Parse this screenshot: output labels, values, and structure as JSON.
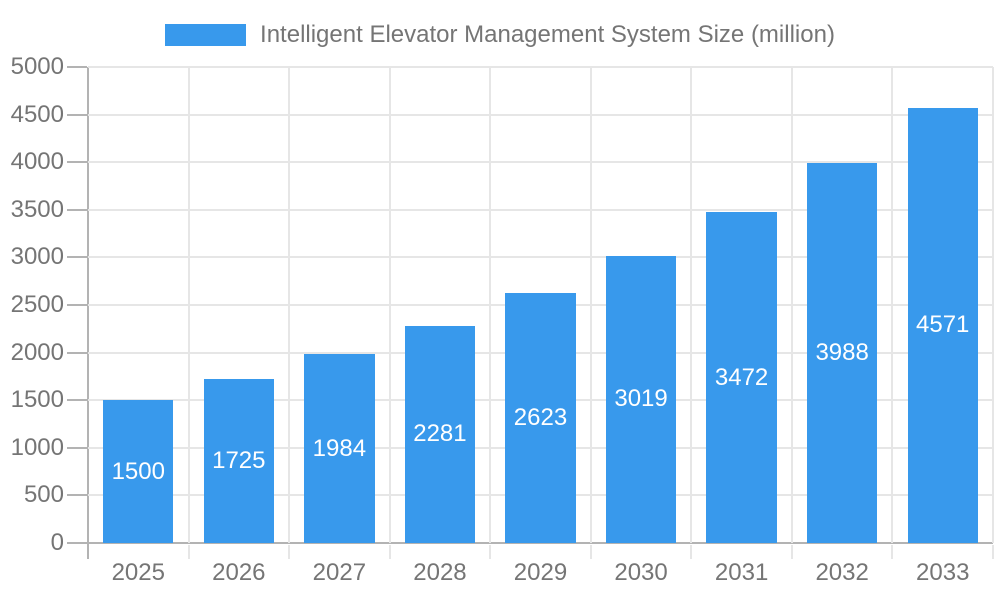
{
  "chart_data": {
    "type": "bar",
    "title": "Intelligent Elevator Management System Size (million)",
    "categories": [
      "2025",
      "2026",
      "2027",
      "2028",
      "2029",
      "2030",
      "2031",
      "2032",
      "2033"
    ],
    "values": [
      1500,
      1725,
      1984,
      2281,
      2623,
      3019,
      3472,
      3988,
      4571
    ],
    "xlabel": "",
    "ylabel": "",
    "ylim": [
      0,
      5000
    ],
    "ytick_step": 500,
    "y_tick_labels": [
      "0",
      "500",
      "1000",
      "1500",
      "2000",
      "2500",
      "3000",
      "3500",
      "4000",
      "4500",
      "5000"
    ],
    "grid": true,
    "legend_position": "top-center",
    "value_label_position": "inside-center",
    "bar_width_fraction": 0.7,
    "colors": {
      "bar": "#3899EC",
      "value_label": "#FFFFFF",
      "axis_text": "#757575",
      "gridline": "#E6E6E6",
      "axis_line": "#B3B3B3",
      "background": "#FFFFFF"
    }
  }
}
